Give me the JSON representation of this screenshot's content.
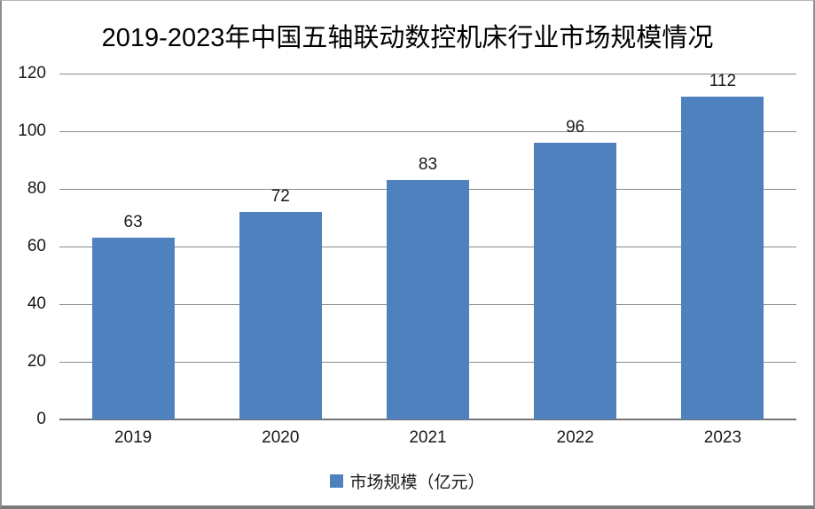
{
  "chart_data": {
    "type": "bar",
    "title": "2019-2023年中国五轴联动数控机床行业市场规模情况",
    "categories": [
      "2019",
      "2020",
      "2021",
      "2022",
      "2023"
    ],
    "values": [
      63,
      72,
      83,
      96,
      112
    ],
    "series_name": "市场规模（亿元）",
    "xlabel": "",
    "ylabel": "",
    "ylim": [
      0,
      120
    ],
    "yticks": [
      0,
      20,
      40,
      60,
      80,
      100,
      120
    ],
    "grid": true,
    "data_labels": true,
    "legend_position": "bottom",
    "bar_color": "#4E81BD",
    "gridline_color": "#8a8a8a",
    "axisline_color": "#757575"
  }
}
